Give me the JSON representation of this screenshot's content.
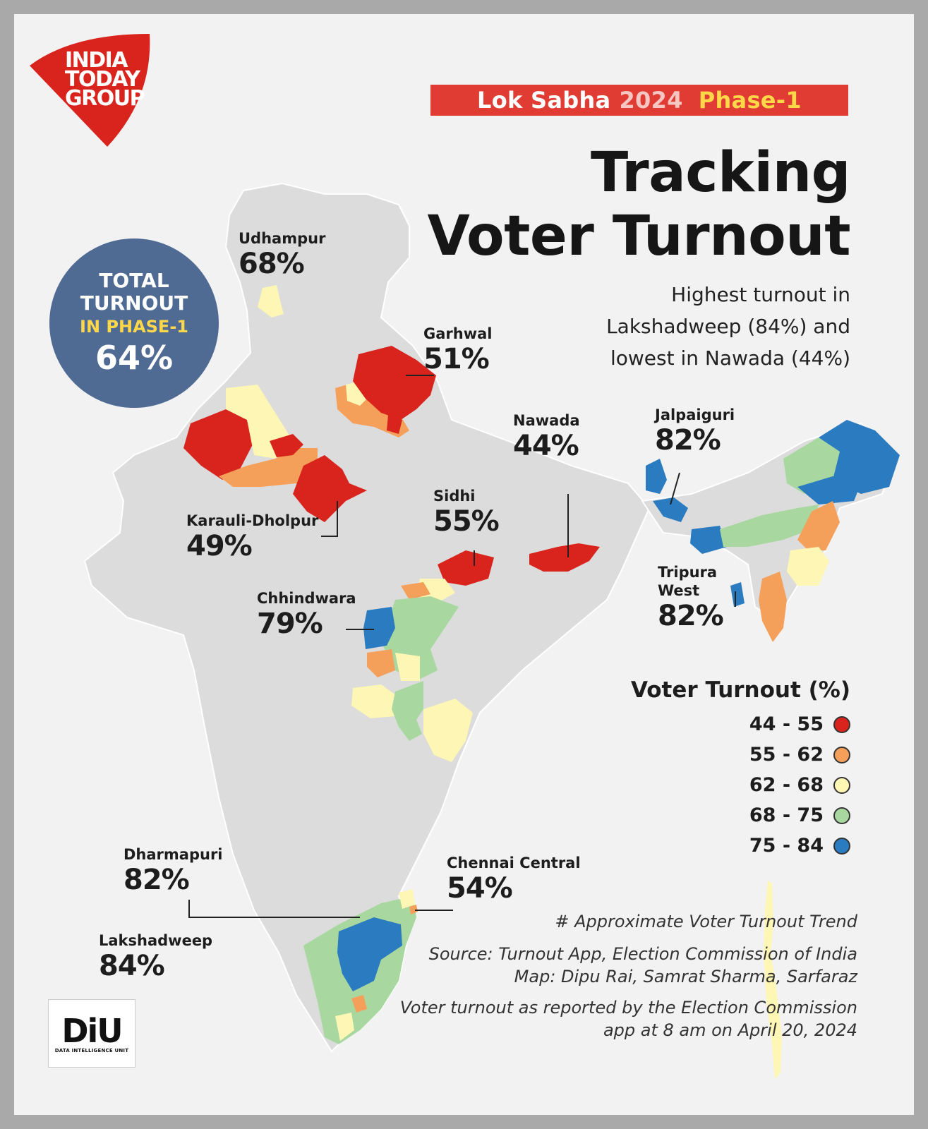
{
  "brand": {
    "logo_text": "INDIA TODAY GROUP",
    "logo_lines": [
      "INDIA",
      "TODAY",
      "GROUP"
    ],
    "diu_mark": "DiU",
    "diu_subtitle": "DATA INTELLIGENCE UNIT",
    "red": "#d8241c"
  },
  "banner": {
    "left": "Lok Sabha",
    "year": "2024",
    "phase": "Phase-1"
  },
  "title": {
    "line1": "Tracking",
    "line2": "Voter Turnout"
  },
  "subtitle": {
    "line1": "Highest turnout in",
    "line2": "Lakshadweep (84%) and",
    "line3": "lowest in Nawada (44%)"
  },
  "total": {
    "line1": "TOTAL",
    "line2": "TURNOUT",
    "line3": "IN PHASE-1",
    "value": "64%"
  },
  "regions": [
    {
      "name": "Udhampur",
      "pct": "68%",
      "bin": "62 - 68"
    },
    {
      "name": "Garhwal",
      "pct": "51%",
      "bin": "44 - 55"
    },
    {
      "name": "Nawada",
      "pct": "44%",
      "bin": "44 - 55"
    },
    {
      "name": "Jalpaiguri",
      "pct": "82%",
      "bin": "75 - 84"
    },
    {
      "name": "Karauli-Dholpur",
      "pct": "49%",
      "bin": "44 - 55"
    },
    {
      "name": "Sidhi",
      "pct": "55%",
      "bin": "44 - 55"
    },
    {
      "name": "Chhindwara",
      "pct": "79%",
      "bin": "75 - 84"
    },
    {
      "name_line1": "Tripura",
      "name_line2": "West",
      "pct": "82%",
      "bin": "75 - 84"
    },
    {
      "name": "Dharmapuri",
      "pct": "82%",
      "bin": "75 - 84"
    },
    {
      "name": "Chennai Central",
      "pct": "54%",
      "bin": "44 - 55"
    },
    {
      "name": "Lakshadweep",
      "pct": "84%",
      "bin": "75 - 84"
    }
  ],
  "legend": {
    "title": "Voter Turnout (%)",
    "items": [
      {
        "range": "44 - 55",
        "color": "#d8241c"
      },
      {
        "range": "55 - 62",
        "color": "#f5a05a"
      },
      {
        "range": "62 - 68",
        "color": "#fdf6b4"
      },
      {
        "range": "68 - 75",
        "color": "#a8d8a0"
      },
      {
        "range": "75 - 84",
        "color": "#2a7bbf"
      }
    ]
  },
  "colors": {
    "base_land": "#dcdcdc",
    "badge": "#4f6a93",
    "banner": "#e03c33"
  },
  "notes": {
    "trend": "# Approximate Voter Turnout Trend",
    "source": "Source: Turnout App, Election Commission of India",
    "map_credit": "Map: Dipu Rai, Samrat Sharma, Sarfaraz",
    "reported_line1": "Voter turnout as reported by the Election Commission",
    "reported_line2": "app at 8 am on April 20, 2024"
  }
}
